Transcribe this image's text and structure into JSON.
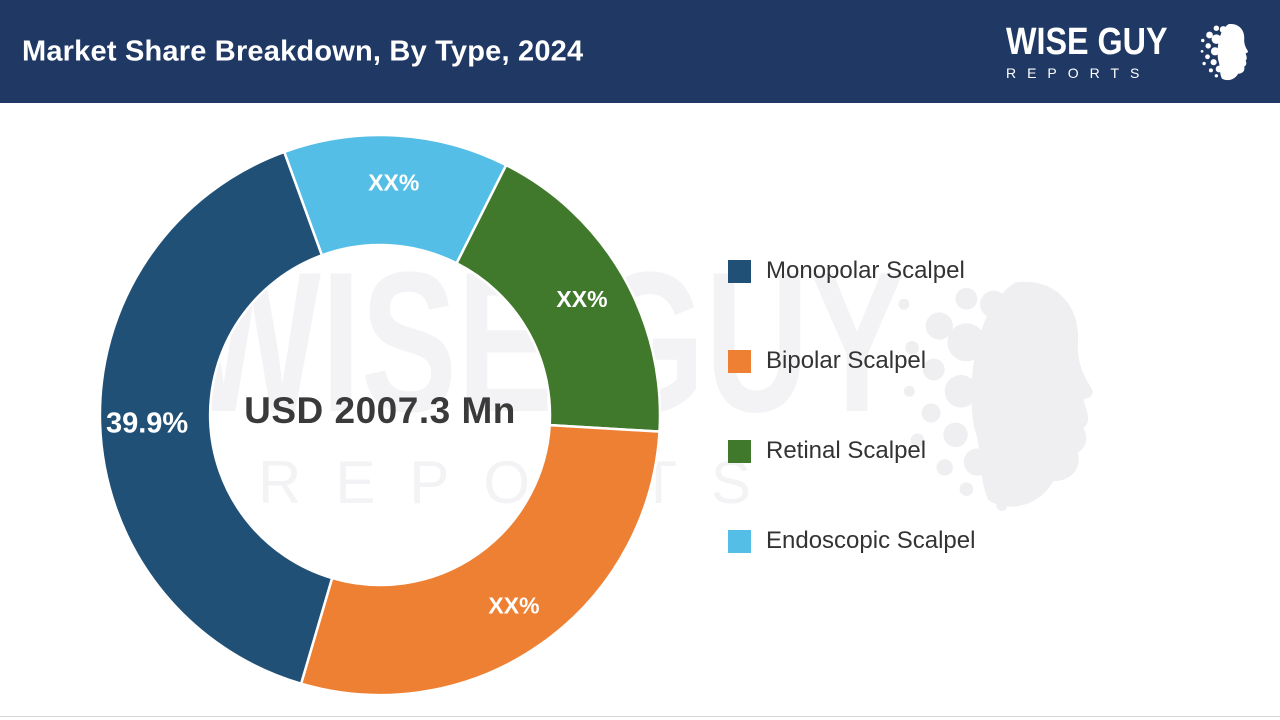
{
  "header": {
    "title": "Market Share Breakdown, By Type, 2024",
    "bg_color": "#203864",
    "logo": {
      "line1": "WISE GUY",
      "line2": "REPORTS"
    }
  },
  "watermark": {
    "line1": "WISE GUY",
    "line2": "REPORTS"
  },
  "center_label": "USD 2007.3 Mn",
  "legend": [
    {
      "label": "Monopolar Scalpel",
      "color": "#215077"
    },
    {
      "label": "Bipolar Scalpel",
      "color": "#EE8033"
    },
    {
      "label": "Retinal Scalpel",
      "color": "#41792C"
    },
    {
      "label": "Endoscopic Scalpel",
      "color": "#55BEE6"
    }
  ],
  "chart_data": {
    "type": "pie",
    "subtype": "donut",
    "title": "Market Share Breakdown, By Type, 2024",
    "center_label": "USD 2007.3 Mn",
    "legend_position": "right",
    "start_angle_deg": -20,
    "segments_draw_order": [
      {
        "name": "Endoscopic Scalpel",
        "display_label": "XX%",
        "percent_est": 13.0,
        "color": "#55BEE6"
      },
      {
        "name": "Retinal Scalpel",
        "display_label": "XX%",
        "percent_est": 18.5,
        "color": "#41792C"
      },
      {
        "name": "Bipolar Scalpel",
        "display_label": "XX%",
        "percent_est": 28.6,
        "color": "#EE8033"
      },
      {
        "name": "Monopolar Scalpel",
        "display_label": "39.9%",
        "percent_est": 39.9,
        "color": "#215077"
      }
    ],
    "shown_values": {
      "Monopolar Scalpel": "39.9%",
      "Bipolar Scalpel": "XX%",
      "Retinal Scalpel": "XX%",
      "Endoscopic Scalpel": "XX%"
    }
  }
}
